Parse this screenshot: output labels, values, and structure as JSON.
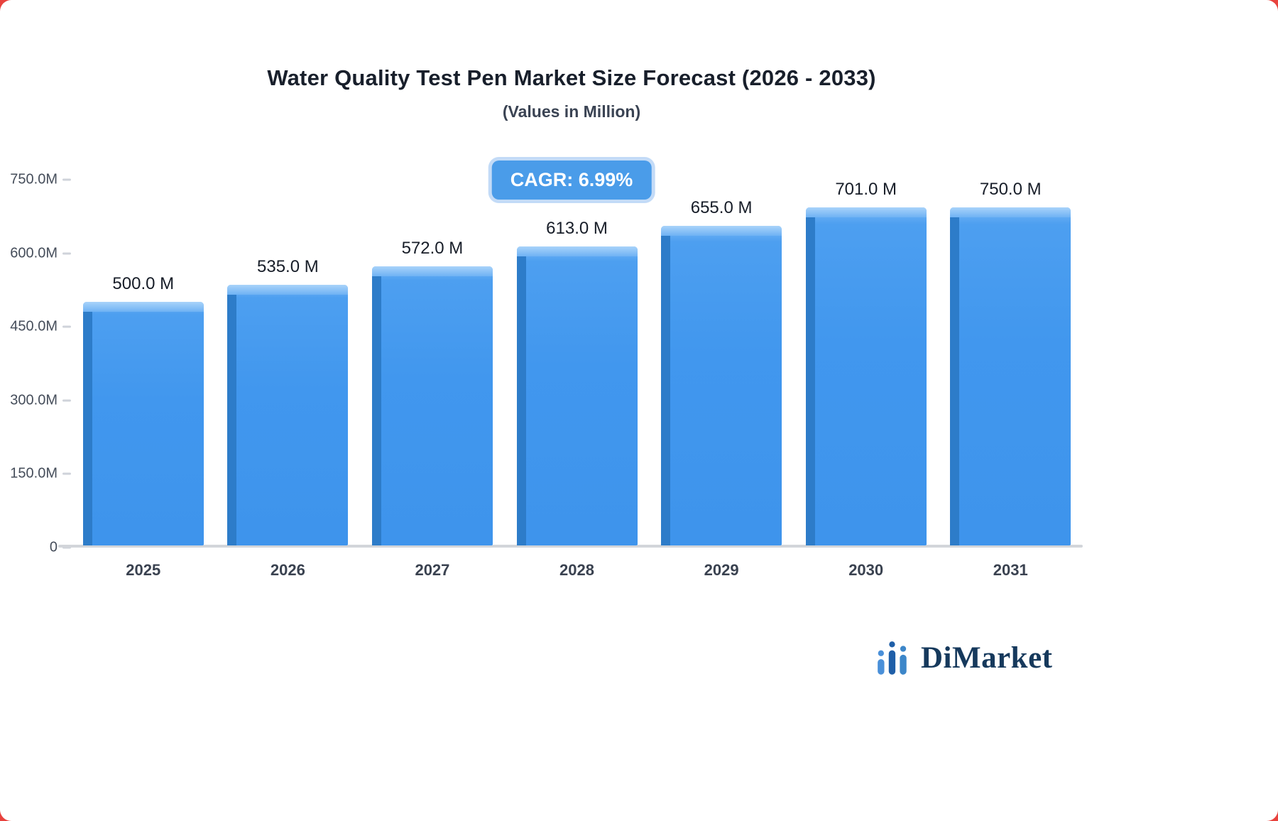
{
  "page": {
    "background_color": "#e8423d",
    "card_color": "#ffffff"
  },
  "chart_data": {
    "type": "bar",
    "title": "Water Quality Test Pen Market Size Forecast (2026 - 2033)",
    "subtitle": "(Values in Million)",
    "categories": [
      "2025",
      "2026",
      "2027",
      "2028",
      "2029",
      "2030",
      "2031"
    ],
    "values": [
      500,
      535,
      572,
      613,
      655,
      701,
      750
    ],
    "data_labels": [
      "500.0 M",
      "535.0 M",
      "572.0 M",
      "613.0 M",
      "655.0 M",
      "701.0 M",
      "750.0 M"
    ],
    "yticks": [
      {
        "label": "750.0M",
        "value": 750
      },
      {
        "label": "600.0M",
        "value": 600
      },
      {
        "label": "450.0M",
        "value": 450
      },
      {
        "label": "300.0M",
        "value": 300
      },
      {
        "label": "150.0M",
        "value": 150
      },
      {
        "label": "0",
        "value": 0
      }
    ],
    "ylim": [
      0,
      750
    ],
    "grid": false,
    "legend": "none",
    "bar_color": "#4197ee",
    "bar_side_color": "#2d7cc9",
    "bar_top_color": "#8cc3f8",
    "axis_line_color": "#d2d5da"
  },
  "badge": {
    "label": "CAGR: 6.99%",
    "background": "#4a9ce9",
    "text_color": "#ffffff"
  },
  "branding": {
    "logo_text": "DiMarket",
    "logo_icon": "bar-chart-icon",
    "logo_text_color": "#16395c",
    "logo_icon_color": "#2e78c7"
  }
}
